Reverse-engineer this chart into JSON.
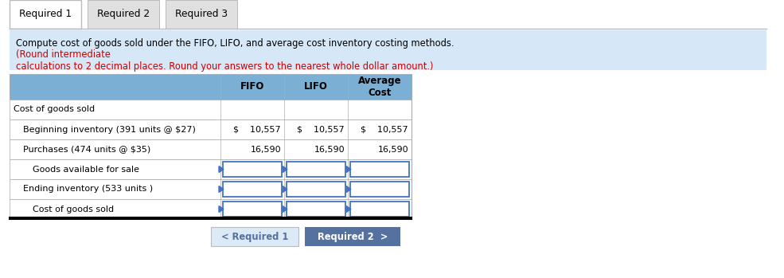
{
  "tabs": [
    "Required 1",
    "Required 2",
    "Required 3"
  ],
  "active_tab": 0,
  "instruction_black": "Compute cost of goods sold under the FIFO, LIFO, and average cost inventory costing methods. ",
  "instruction_red": "(Round intermediate\ncalculations to 2 decimal places. Round your answers to the nearest whole dollar amount.)",
  "instruction_bg": "#d6e8f7",
  "table_header_bg": "#7bafd4",
  "table_header_cols": [
    "FIFO",
    "LIFO",
    "Average\nCost"
  ],
  "table_rows": [
    {
      "label": "Cost of goods sold",
      "indent": 0,
      "fifo": "",
      "lifo": "",
      "avg": "",
      "input": false
    },
    {
      "label": "Beginning inventory (391 units @ $27)",
      "indent": 1,
      "fifo": "$    10,557",
      "lifo": "$    10,557",
      "avg": "$    10,557",
      "input": false
    },
    {
      "label": "Purchases (474 units @ $35)",
      "indent": 1,
      "fifo": "16,590",
      "lifo": "16,590",
      "avg": "16,590",
      "input": false
    },
    {
      "label": "Goods available for sale",
      "indent": 2,
      "fifo": "",
      "lifo": "",
      "avg": "",
      "input": true
    },
    {
      "label": "Ending inventory (533 units )",
      "indent": 1,
      "fifo": "",
      "lifo": "",
      "avg": "",
      "input": true
    },
    {
      "label": "Cost of goods sold",
      "indent": 2,
      "fifo": "",
      "lifo": "",
      "avg": "",
      "input": true
    }
  ],
  "nav_btn_left_label": "< Required 1",
  "nav_btn_right_label": "Required 2  >",
  "nav_btn_left_bg": "#dce9f7",
  "nav_btn_right_bg": "#5571a0",
  "nav_btn_right_text": "#ffffff",
  "nav_btn_left_text": "#5571a0",
  "tab_active_bg": "#ffffff",
  "tab_inactive_bg": "#e0e0e0",
  "tab_border": "#bbbbbb",
  "table_border": "#aaaaaa",
  "input_cell_border": "#4472c4",
  "fig_width": 9.85,
  "fig_height": 3.49,
  "dpi": 100
}
